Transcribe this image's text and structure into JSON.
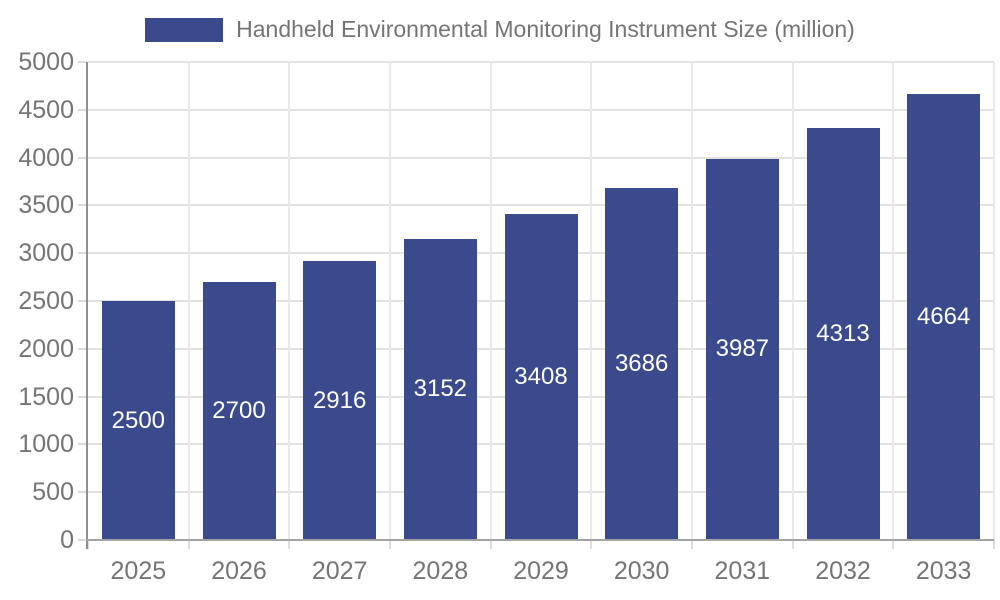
{
  "chart_data": {
    "type": "bar",
    "title": "Handheld Environmental Monitoring Instrument Size (million)",
    "categories": [
      "2025",
      "2026",
      "2027",
      "2028",
      "2029",
      "2030",
      "2031",
      "2032",
      "2033"
    ],
    "values": [
      2500,
      2700,
      2916,
      3152,
      3408,
      3686,
      3987,
      4313,
      4664
    ],
    "xlabel": "",
    "ylabel": "",
    "ylim": [
      0,
      5000
    ],
    "yticks": [
      0,
      500,
      1000,
      1500,
      2000,
      2500,
      3000,
      3500,
      4000,
      4500,
      5000
    ],
    "grid": true,
    "legend_position": "top",
    "value_labels_position": "center-of-bar"
  },
  "legend": {
    "label": "Handheld Environmental Monitoring Instrument Size (million)"
  },
  "colors": {
    "bar": "#3B4A8C",
    "value_label": "#ffffff",
    "legend_text": "#757575",
    "axis_text": "#757575",
    "grid_h": "#e2e2e2",
    "grid_v": "#e9e9e9",
    "tick": "#dcdcdc",
    "y_axis_line": "#8f8f8f",
    "x_axis_line": "#a3a3a3",
    "background": "#ffffff"
  }
}
